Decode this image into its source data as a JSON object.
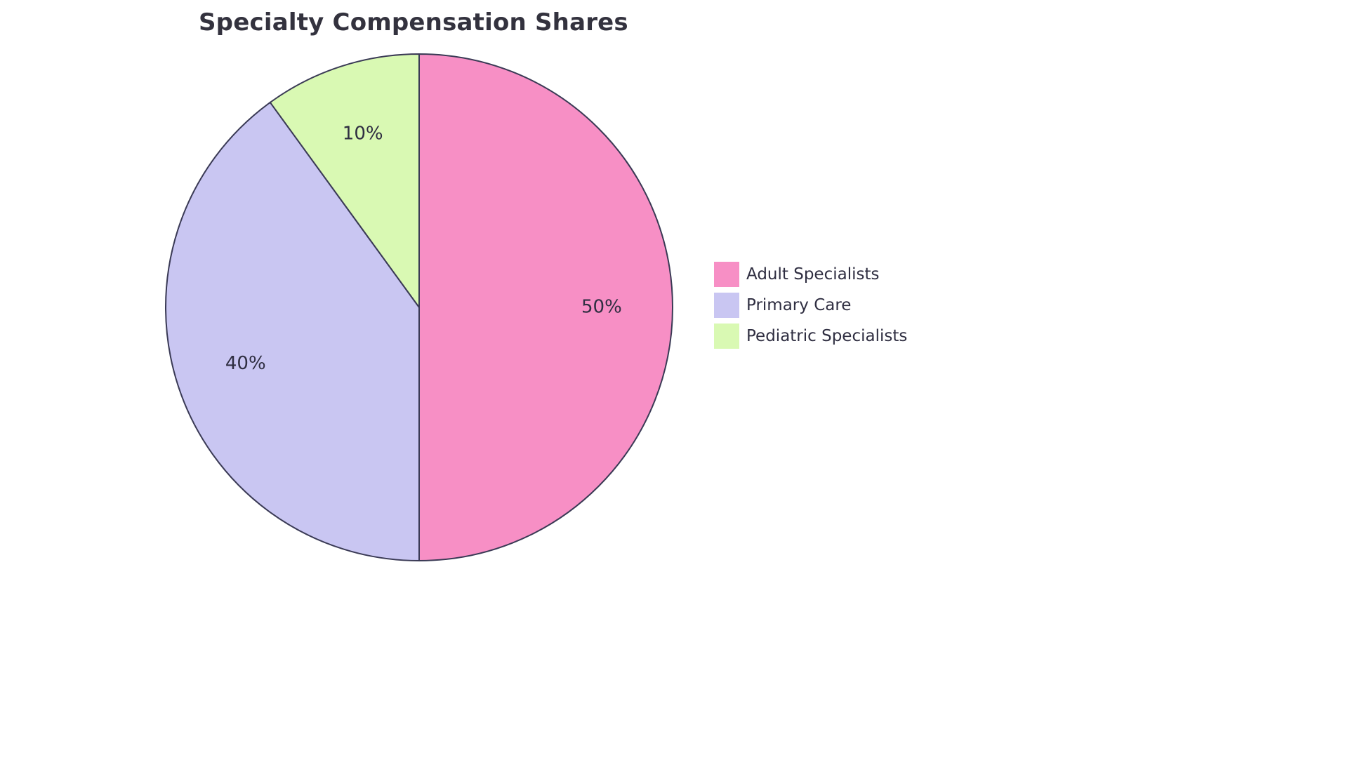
{
  "chart_data": {
    "type": "pie",
    "title": "Specialty Compensation Shares",
    "labels": [
      "Adult Specialists",
      "Primary Care",
      "Pediatric Specialists"
    ],
    "values": [
      50,
      40,
      10
    ],
    "value_labels": [
      "50%",
      "40%",
      "10%"
    ],
    "colors": [
      "#F78FC5",
      "#C9C6F2",
      "#D9F9B3"
    ],
    "slice_outline_color": "#3A3A55",
    "text_color": "#2F2E41",
    "start_angle_deg": 0,
    "direction": "clockwise",
    "legend_position": "right",
    "background": "#FFFFFF"
  }
}
